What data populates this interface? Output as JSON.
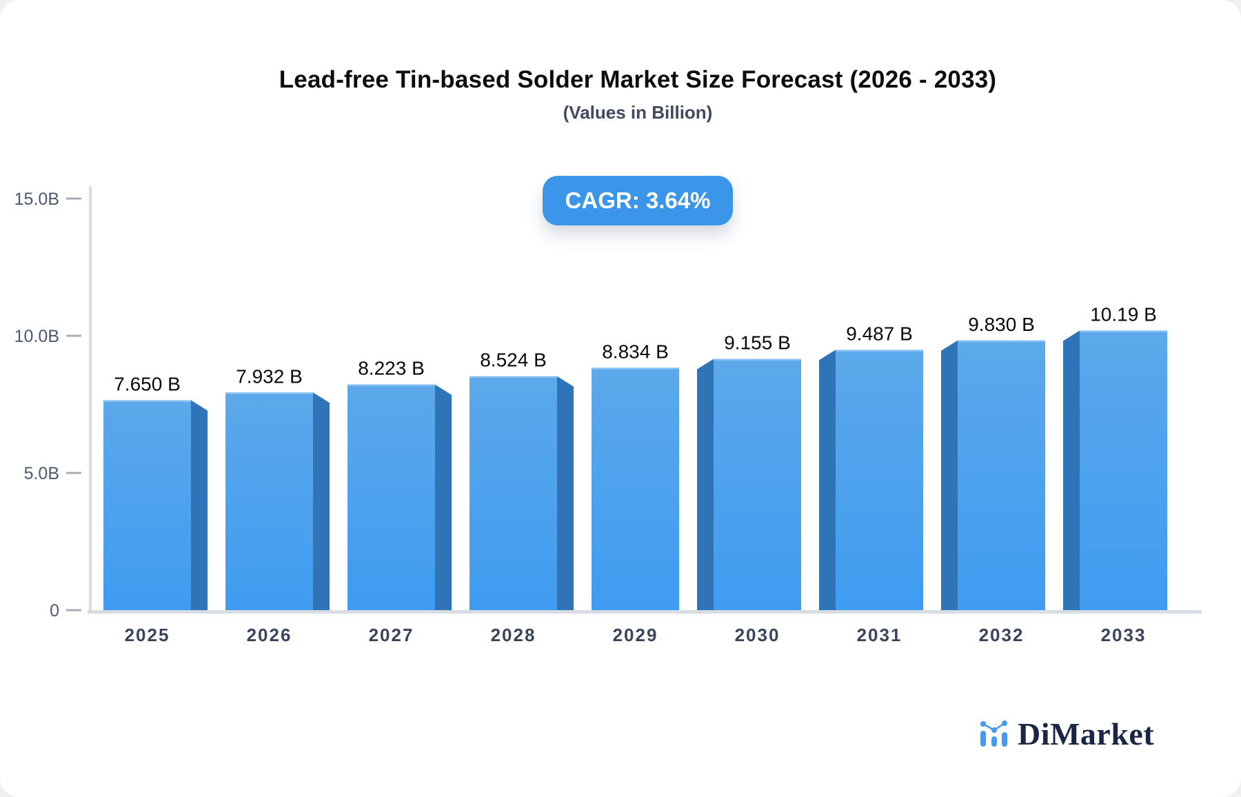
{
  "header": {
    "title": "Lead-free Tin-based Solder Market Size Forecast (2026 - 2033)",
    "subtitle": "(Values in Billion)",
    "cagr_label": "CAGR: 3.64%"
  },
  "chart_data": {
    "type": "bar",
    "title": "Lead-free Tin-based Solder Market Size Forecast (2026 - 2033)",
    "subtitle": "(Values in Billion)",
    "categories": [
      "2025",
      "2026",
      "2027",
      "2028",
      "2029",
      "2030",
      "2031",
      "2032",
      "2033"
    ],
    "values": [
      7.65,
      7.932,
      8.223,
      8.524,
      8.834,
      9.155,
      9.487,
      9.83,
      10.19
    ],
    "value_labels": [
      "7.650 B",
      "7.932 B",
      "8.223 B",
      "8.524 B",
      "8.834 B",
      "9.155 B",
      "9.487 B",
      "9.830 B",
      "10.19 B"
    ],
    "xlabel": "",
    "ylabel": "",
    "ylim": [
      0,
      15
    ],
    "yticks": [
      {
        "label": "15.0B",
        "value": 15
      },
      {
        "label": "10.0B",
        "value": 10
      },
      {
        "label": "5.0B",
        "value": 5
      },
      {
        "label": "0",
        "value": 0
      }
    ],
    "grid": false,
    "legend": "none",
    "annotation": "CAGR: 3.64%"
  },
  "colors": {
    "bar_face_top": "#5ca8ea",
    "bar_face_bottom": "#3f9cf1",
    "bar_top_highlight": "#85bff3",
    "bar_side": "#2e74b7",
    "cagr_pill_bg": "#3b96ea",
    "axis_line": "#d9dce1",
    "tick_mark": "#a7aeb8",
    "y_label": "#4b5a6e",
    "x_label": "#39455a",
    "value_label": "#0a0a0a",
    "logo_blue": "#4499f0",
    "logo_navy": "#1b2544"
  },
  "logo": {
    "text": "DiMarket",
    "icon": "bar-line-chart-icon"
  }
}
